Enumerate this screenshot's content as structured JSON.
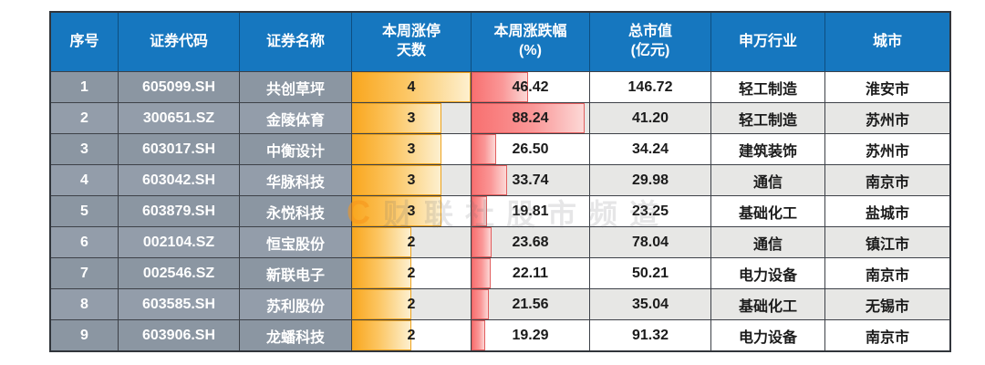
{
  "watermark": {
    "logo": "C",
    "text": "财联社股市频道"
  },
  "colors": {
    "header_blue": "#1677bf",
    "left_column_gray": "#8b96a2",
    "alt_row_gray": "#e7e7e5",
    "limit_bar_orange": "#f9a71f",
    "change_bar_red": "#f87070"
  },
  "table": {
    "headers": [
      "序号",
      "证券代码",
      "证券名称",
      "本周涨停\n天数",
      "本周涨跌幅\n(%)",
      "总市值\n(亿元)",
      "申万行业",
      "城市"
    ]
  },
  "chart_data": {
    "type": "table",
    "columns": [
      "序号",
      "证券代码",
      "证券名称",
      "本周涨停天数",
      "本周涨跌幅(%)",
      "总市值(亿元)",
      "申万行业",
      "城市"
    ],
    "rows": [
      {
        "index": "1",
        "code": "605099.SH",
        "name": "共创草坪",
        "limit_days": "4",
        "limit_bar_pct": 100,
        "change_pct": "46.42",
        "change_bar_pct": 48,
        "market_cap": "146.72",
        "industry": "轻工制造",
        "city": "淮安市"
      },
      {
        "index": "2",
        "code": "300651.SZ",
        "name": "金陵体育",
        "limit_days": "3",
        "limit_bar_pct": 75,
        "change_pct": "88.24",
        "change_bar_pct": 96,
        "market_cap": "41.20",
        "industry": "轻工制造",
        "city": "苏州市"
      },
      {
        "index": "3",
        "code": "603017.SH",
        "name": "中衡设计",
        "limit_days": "3",
        "limit_bar_pct": 75,
        "change_pct": "26.50",
        "change_bar_pct": 21,
        "market_cap": "34.24",
        "industry": "建筑装饰",
        "city": "苏州市"
      },
      {
        "index": "4",
        "code": "603042.SH",
        "name": "华脉科技",
        "limit_days": "3",
        "limit_bar_pct": 75,
        "change_pct": "33.74",
        "change_bar_pct": 30,
        "market_cap": "29.98",
        "industry": "通信",
        "city": "南京市"
      },
      {
        "index": "5",
        "code": "603879.SH",
        "name": "永悦科技",
        "limit_days": "3",
        "limit_bar_pct": 75,
        "change_pct": "19.81",
        "change_bar_pct": 13,
        "market_cap": "23.25",
        "industry": "基础化工",
        "city": "盐城市"
      },
      {
        "index": "6",
        "code": "002104.SZ",
        "name": "恒宝股份",
        "limit_days": "2",
        "limit_bar_pct": 50,
        "change_pct": "23.68",
        "change_bar_pct": 17,
        "market_cap": "78.04",
        "industry": "通信",
        "city": "镇江市"
      },
      {
        "index": "7",
        "code": "002546.SZ",
        "name": "新联电子",
        "limit_days": "2",
        "limit_bar_pct": 50,
        "change_pct": "22.11",
        "change_bar_pct": 16,
        "market_cap": "50.21",
        "industry": "电力设备",
        "city": "南京市"
      },
      {
        "index": "8",
        "code": "603585.SH",
        "name": "苏利股份",
        "limit_days": "2",
        "limit_bar_pct": 50,
        "change_pct": "21.56",
        "change_bar_pct": 15,
        "market_cap": "35.04",
        "industry": "基础化工",
        "city": "无锡市"
      },
      {
        "index": "9",
        "code": "603906.SH",
        "name": "龙蟠科技",
        "limit_days": "2",
        "limit_bar_pct": 50,
        "change_pct": "19.29",
        "change_bar_pct": 12,
        "market_cap": "91.32",
        "industry": "电力设备",
        "city": "南京市"
      }
    ]
  }
}
